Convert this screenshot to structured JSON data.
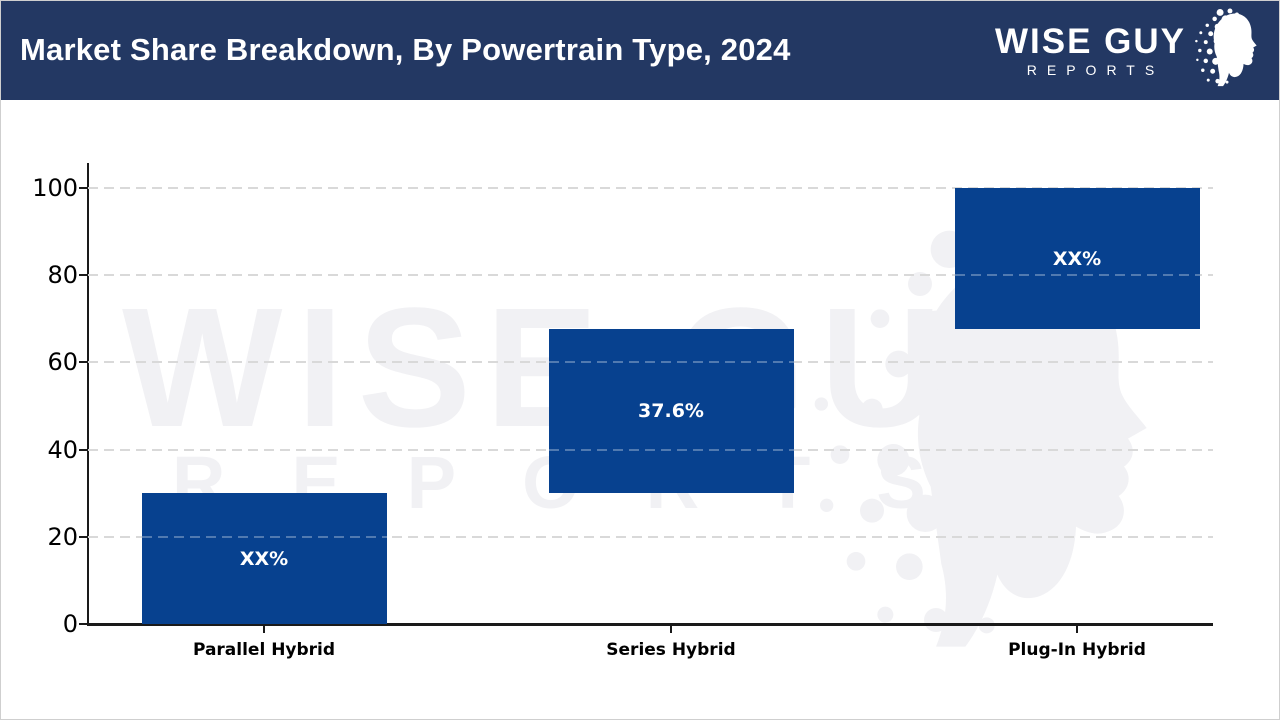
{
  "header": {
    "title": "Market Share Breakdown, By Powertrain Type, 2024",
    "logo": {
      "line1": "WISE GUY",
      "line2": "REPORTS"
    }
  },
  "watermark": {
    "line1": "WISE GUY",
    "line2": "REPORTS"
  },
  "chart_data": {
    "type": "bar",
    "subtype": "waterfall-floating-bars",
    "title": "Market Share Breakdown, By Powertrain Type, 2024",
    "categories": [
      "Parallel Hybrid",
      "Series Hybrid",
      "Plug-In Hybrid"
    ],
    "bars": [
      {
        "category": "Parallel Hybrid",
        "start": 0,
        "end": 30,
        "label": "XX%"
      },
      {
        "category": "Series Hybrid",
        "start": 30,
        "end": 67.6,
        "label": "37.6%"
      },
      {
        "category": "Plug-In Hybrid",
        "start": 67.6,
        "end": 100,
        "label": "XX%"
      }
    ],
    "xlabel": "",
    "ylabel": "",
    "ylim": [
      0,
      100
    ],
    "yticks": [
      0,
      20,
      40,
      60,
      80,
      100
    ],
    "grid": "horizontal-dashed",
    "legend": null,
    "bar_color": "#07418f"
  },
  "colors": {
    "header_bg": "#233863",
    "bar": "#07418f",
    "grid": "#d9d9d9",
    "axis": "#1a1a1a",
    "tick_text": "#000000",
    "watermark": "#f1f1f4",
    "border": "#cfcfcf"
  }
}
